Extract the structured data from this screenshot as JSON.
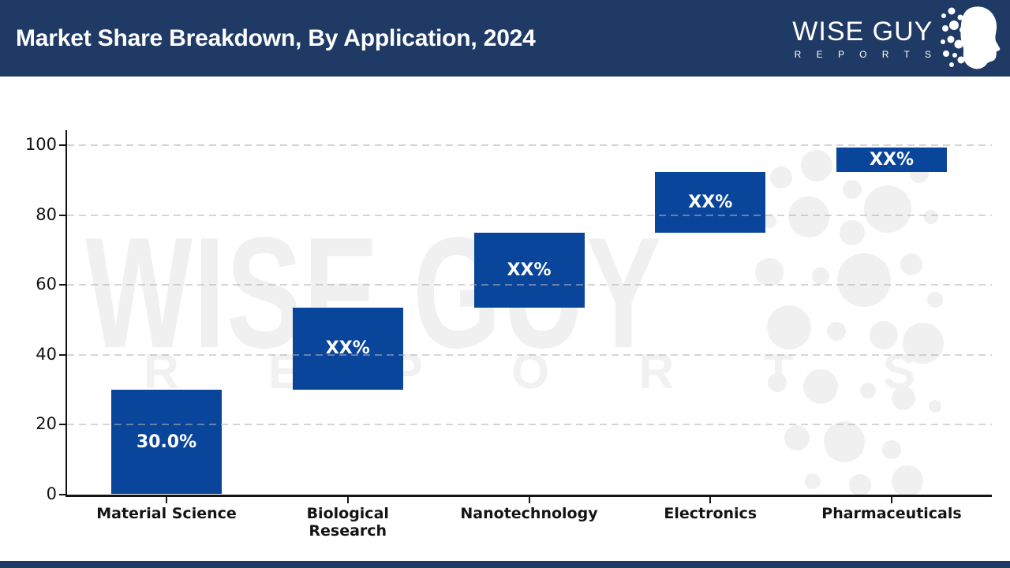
{
  "header": {
    "title": "Market Share Breakdown, By Application, 2024",
    "logo": {
      "line1": "WISE GUY",
      "line2": "R E P O R T S"
    }
  },
  "watermark": {
    "line1": "WISE GUY",
    "line2": "R E P O R T S"
  },
  "chart_data": {
    "type": "bar",
    "subtype": "waterfall",
    "title": "Market Share Breakdown, By Application, 2024",
    "categories": [
      "Material Science",
      "Biological\nResearch",
      "Nanotechnology",
      "Electronics",
      "Pharmaceuticals"
    ],
    "series": [
      {
        "name": "Market Share",
        "segments": [
          {
            "category": "Material Science",
            "start": 0,
            "end": 30,
            "label": "30.0%"
          },
          {
            "category": "Biological Research",
            "start": 30,
            "end": 53.5,
            "label": "XX%"
          },
          {
            "category": "Nanotechnology",
            "start": 53.5,
            "end": 75,
            "label": "XX%"
          },
          {
            "category": "Electronics",
            "start": 75,
            "end": 92.5,
            "label": "XX%"
          },
          {
            "category": "Pharmaceuticals",
            "start": 92.5,
            "end": 99.5,
            "label": "XX%"
          }
        ]
      }
    ],
    "ylim": [
      0,
      104
    ],
    "yticks": [
      0,
      20,
      40,
      60,
      80,
      100
    ],
    "grid": "dashed horizontal",
    "legend": "none",
    "bar_color": "#0a459c",
    "bar_label_color": "#ffffff",
    "axis_color": "#141414",
    "header_color": "#1f3a64",
    "watermark_color": "#f0f0f0"
  }
}
